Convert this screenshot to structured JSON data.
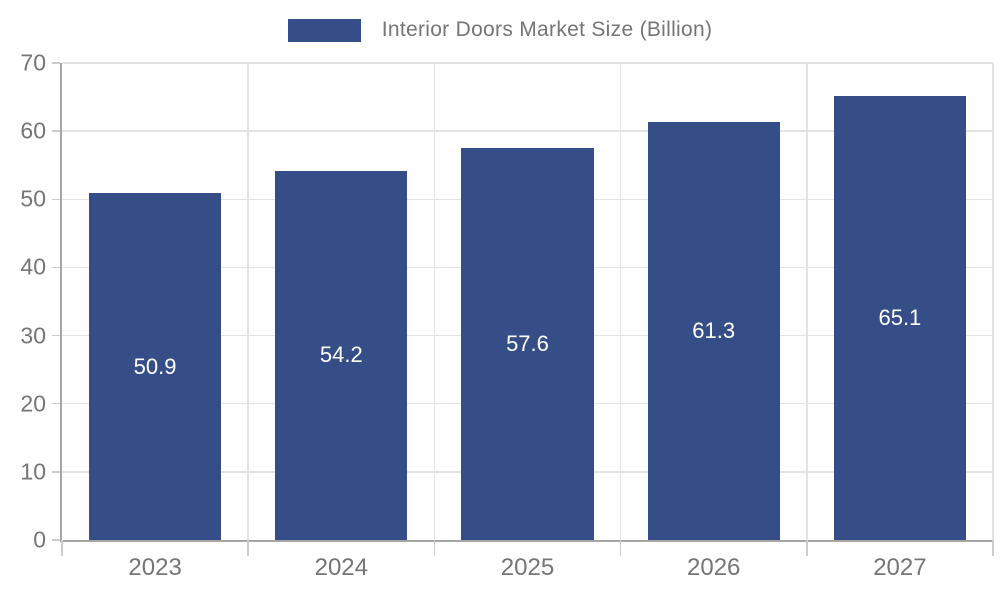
{
  "chart_data": {
    "type": "bar",
    "title": "Interior Doors Market Size (Billion)",
    "categories": [
      "2023",
      "2024",
      "2025",
      "2026",
      "2027"
    ],
    "values": [
      50.9,
      54.2,
      57.6,
      61.3,
      65.1
    ],
    "series": [
      {
        "name": "Interior Doors Market Size (Billion)",
        "values": [
          50.9,
          54.2,
          57.6,
          61.3,
          65.1
        ]
      }
    ],
    "xlabel": "",
    "ylabel": "",
    "ylim": [
      0,
      70
    ],
    "yticks": [
      0,
      10,
      20,
      30,
      40,
      50,
      60,
      70
    ],
    "grid": true,
    "legend_position": "top-center",
    "bar_color": "#364E87",
    "value_label_color": "#ffffff",
    "axis_text_color": "#757575"
  }
}
